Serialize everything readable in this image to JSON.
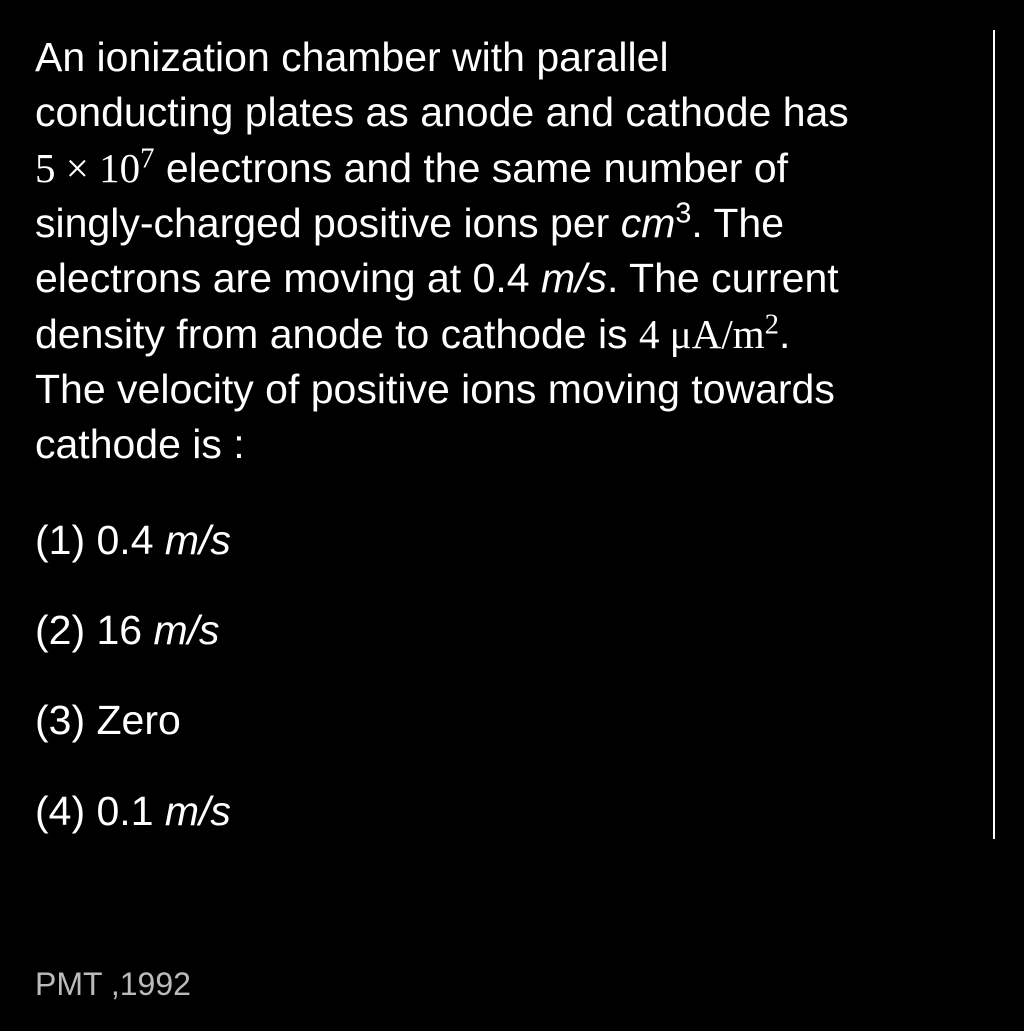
{
  "question": {
    "line1": "An ionization chamber with parallel",
    "line2": "conducting plates as anode and cathode has",
    "line3_pre": "5 × 10",
    "line3_sup": "7",
    "line3_post": " electrons and the same number of",
    "line4_pre": "singly-charged positive ions per ",
    "line4_cm": "cm",
    "line4_sup": "3",
    "line4_post": ". The",
    "line5": "electrons are moving at 0.4 ",
    "line5_unit": "m/s",
    "line5_post": ". The current",
    "line6_pre": "density from anode to cathode is ",
    "line6_val": "4 μA/m",
    "line6_sup": "2",
    "line6_post": ".",
    "line7": "The velocity of positive ions moving towards",
    "line8": "cathode is :"
  },
  "options": {
    "opt1_num": "(1) ",
    "opt1_val": "0.4 ",
    "opt1_unit": "m/s",
    "opt2_num": "(2) ",
    "opt2_val": "16 ",
    "opt2_unit": "m/s",
    "opt3_num": "(3) ",
    "opt3_val": "Zero",
    "opt4_num": "(4) ",
    "opt4_val": "0.1 ",
    "opt4_unit": "m/s"
  },
  "source": "PMT ,1992",
  "colors": {
    "background": "#000000",
    "text": "#ffffff",
    "source_text": "#bbbbbb",
    "divider": "#ffffff"
  },
  "typography": {
    "question_fontsize": 41,
    "source_fontsize": 32
  }
}
